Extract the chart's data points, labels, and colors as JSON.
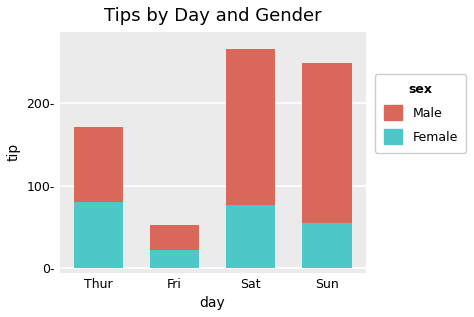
{
  "categories": [
    "Thur",
    "Fri",
    "Sat",
    "Sun"
  ],
  "female_values": [
    80,
    22,
    77,
    55
  ],
  "male_values": [
    90,
    30,
    187,
    193
  ],
  "female_color": "#4dc8c8",
  "male_color": "#d9685a",
  "title": "Tips by Day and Gender",
  "xlabel": "day",
  "ylabel": "tip",
  "ylim": [
    -5,
    285
  ],
  "yticks": [
    0,
    100,
    200
  ],
  "ytick_labels": [
    "0-",
    "100-",
    "200-"
  ],
  "legend_title": "sex",
  "bg_color": "#ffffff",
  "plot_bg_color": "#ebebeb",
  "grid_color": "#ffffff",
  "title_fontsize": 13,
  "axis_fontsize": 10,
  "tick_fontsize": 9,
  "bar_width": 0.65
}
